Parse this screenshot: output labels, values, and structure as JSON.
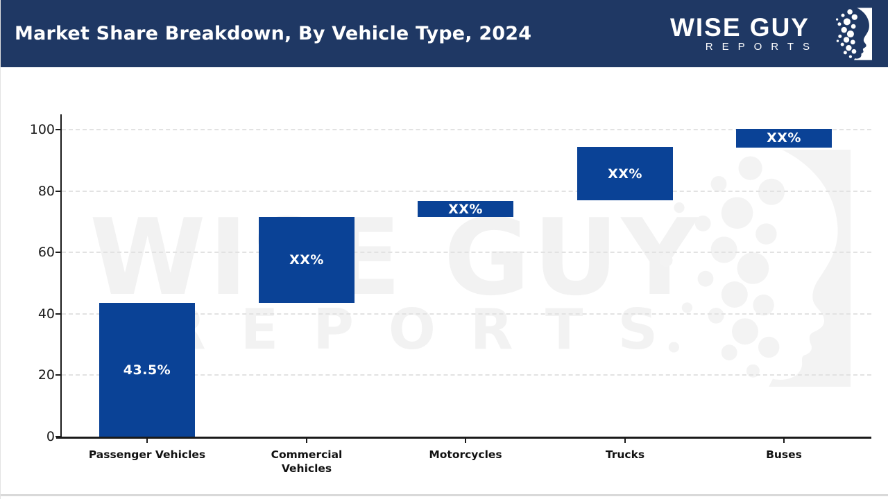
{
  "header": {
    "title": "Market Share Breakdown, By Vehicle Type, 2024",
    "logo": {
      "line1": "WISE GUY",
      "line2": "REPORTS"
    }
  },
  "watermark": {
    "line1": "WISE GUY",
    "line2": "REPORTS"
  },
  "colors": {
    "header_bg": "#1f3864",
    "bar": "#0a4296",
    "bar_label": "#ffffff",
    "grid": "#e2e2e2",
    "axis": "#1a1a1a",
    "watermark": "#f2f2f2",
    "bottom_border": "#d9d9d9"
  },
  "chart_data": {
    "type": "bar",
    "subtype": "waterfall",
    "title": "Market Share Breakdown, By Vehicle Type, 2024",
    "categories": [
      "Passenger Vehicles",
      "Commercial\nVehicles",
      "Motorcycles",
      "Trucks",
      "Buses"
    ],
    "segments": [
      {
        "category": "Passenger Vehicles",
        "start": 0,
        "end": 43.5,
        "label": "43.5%"
      },
      {
        "category": "Commercial\nVehicles",
        "start": 43.5,
        "end": 71.5,
        "label": "XX%"
      },
      {
        "category": "Motorcycles",
        "start": 71.5,
        "end": 76.8,
        "label": "XX%"
      },
      {
        "category": "Trucks",
        "start": 77,
        "end": 94.3,
        "label": "XX%"
      },
      {
        "category": "Buses",
        "start": 94.2,
        "end": 100.2,
        "label": "XX%"
      }
    ],
    "xlabel": "",
    "ylabel": "",
    "ylim": [
      0,
      100
    ],
    "yticks": [
      0,
      20,
      40,
      60,
      80,
      100
    ],
    "grid": "horizontal-dashed",
    "legend": "none"
  }
}
